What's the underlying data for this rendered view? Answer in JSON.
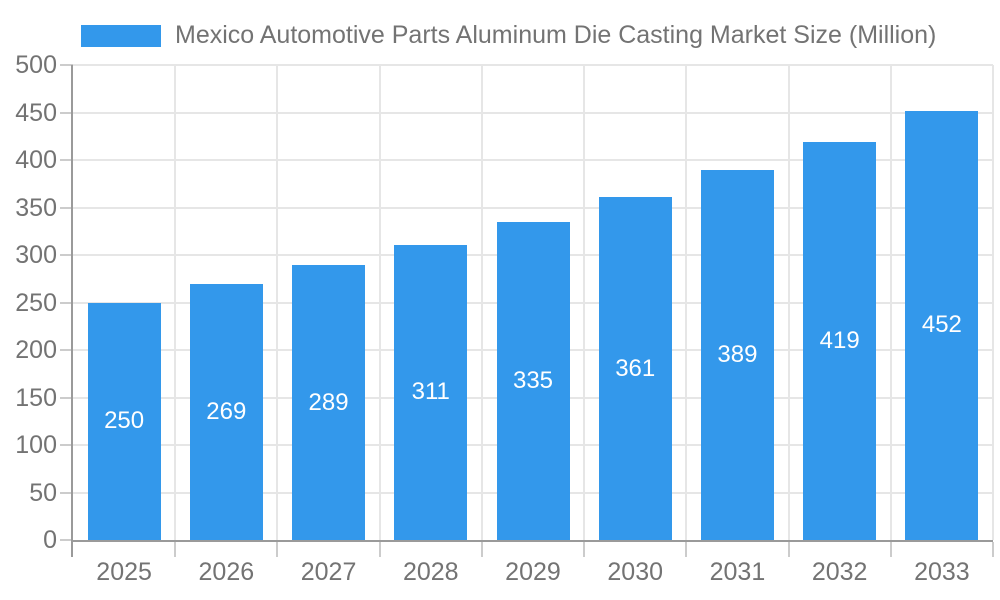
{
  "chart_data": {
    "type": "bar",
    "title": "Mexico Automotive Parts Aluminum Die Casting Market Size (Million)",
    "categories": [
      "2025",
      "2026",
      "2027",
      "2028",
      "2029",
      "2030",
      "2031",
      "2032",
      "2033"
    ],
    "values": [
      250,
      269,
      289,
      311,
      335,
      361,
      389,
      419,
      452
    ],
    "xlabel": "",
    "ylabel": "",
    "ylim": [
      0,
      500
    ],
    "ytick_step": 50,
    "grid": true,
    "legend_position": "top-left",
    "colors": {
      "bar": "#3398EB",
      "value_label": "#ffffff",
      "axis_text": "#737373",
      "axis_line": "#9a9a9a",
      "gridline": "#e6e6e6",
      "tick": "#cccccc",
      "background": "#ffffff"
    }
  }
}
